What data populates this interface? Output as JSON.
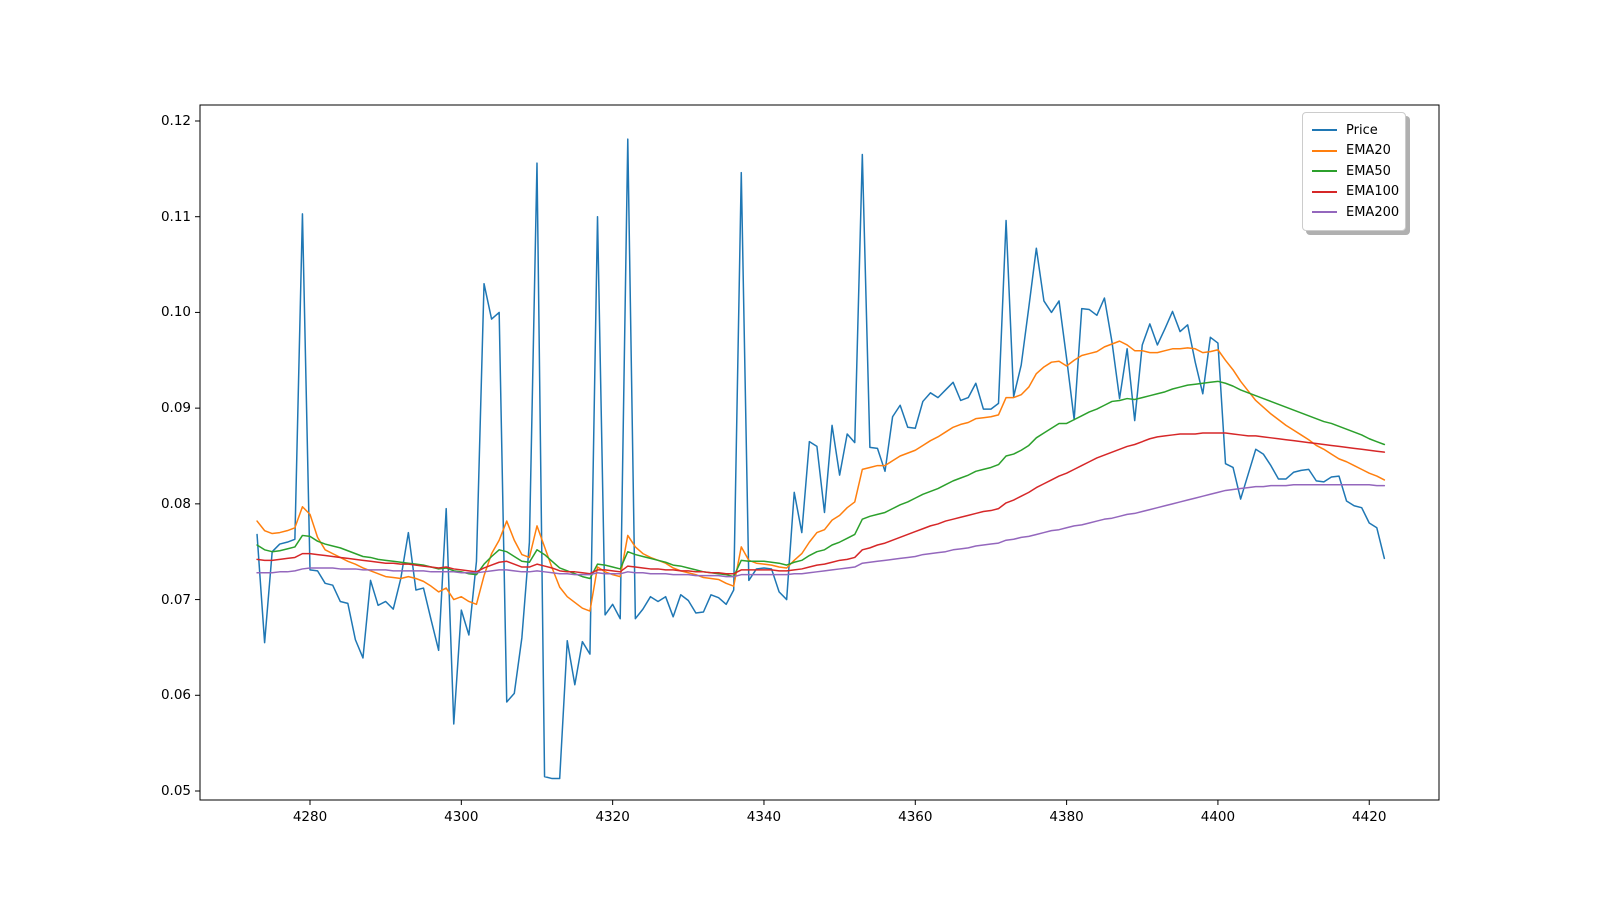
{
  "chart_data": {
    "type": "line",
    "title": "",
    "xlabel": "",
    "ylabel": "",
    "grid": false,
    "legend_position": "upper right",
    "xlim": [
      4265.46,
      4429.22
    ],
    "ylim": [
      0.04906,
      0.12167
    ],
    "x_ticks": {
      "values": [
        4280,
        4300,
        4320,
        4340,
        4360,
        4380,
        4400,
        4420
      ],
      "labels": [
        "4280",
        "4300",
        "4320",
        "4340",
        "4360",
        "4380",
        "4400",
        "4420"
      ]
    },
    "y_ticks": {
      "values": [
        0.05,
        0.06,
        0.07,
        0.08,
        0.09,
        0.1,
        0.11,
        0.12
      ],
      "labels": [
        "0.05",
        "0.06",
        "0.07",
        "0.08",
        "0.09",
        "0.10",
        "0.11",
        "0.12"
      ]
    },
    "x_start": 4273,
    "x_step": 1,
    "series": [
      {
        "name": "Price",
        "color": "#1f77b4",
        "width": 1.5,
        "values": [
          0.0768,
          0.0655,
          0.075,
          0.0758,
          0.076,
          0.0763,
          0.1103,
          0.0731,
          0.073,
          0.0717,
          0.0715,
          0.0698,
          0.0696,
          0.0658,
          0.0639,
          0.072,
          0.0694,
          0.0698,
          0.069,
          0.0722,
          0.077,
          0.071,
          0.0712,
          0.0679,
          0.0647,
          0.0795,
          0.057,
          0.0689,
          0.0663,
          0.074,
          0.103,
          0.0993,
          0.1,
          0.0593,
          0.0602,
          0.066,
          0.076,
          0.1156,
          0.0515,
          0.0513,
          0.0513,
          0.0657,
          0.0611,
          0.0656,
          0.0643,
          0.11,
          0.0684,
          0.0695,
          0.068,
          0.1181,
          0.068,
          0.069,
          0.0703,
          0.0698,
          0.0703,
          0.0682,
          0.0705,
          0.0699,
          0.0686,
          0.0687,
          0.0705,
          0.0702,
          0.0695,
          0.071,
          0.1146,
          0.072,
          0.0732,
          0.0733,
          0.0732,
          0.0708,
          0.07,
          0.0812,
          0.077,
          0.0865,
          0.086,
          0.0791,
          0.0882,
          0.083,
          0.0873,
          0.0864,
          0.1165,
          0.0859,
          0.0858,
          0.0834,
          0.0891,
          0.0903,
          0.088,
          0.0879,
          0.0907,
          0.0916,
          0.0911,
          0.0919,
          0.0927,
          0.0908,
          0.0911,
          0.0926,
          0.0899,
          0.0899,
          0.0905,
          0.1096,
          0.0912,
          0.0945,
          0.1005,
          0.1067,
          0.1012,
          0.1,
          0.1012,
          0.0952,
          0.0888,
          0.1004,
          0.1003,
          0.0997,
          0.1015,
          0.0969,
          0.091,
          0.0962,
          0.0887,
          0.0966,
          0.0988,
          0.0966,
          0.0983,
          0.1001,
          0.098,
          0.0987,
          0.0948,
          0.0915,
          0.0974,
          0.0968,
          0.0842,
          0.0838,
          0.0805,
          0.0831,
          0.0857,
          0.0852,
          0.084,
          0.0826,
          0.0826,
          0.0833,
          0.0835,
          0.0836,
          0.0824,
          0.0823,
          0.0828,
          0.0829,
          0.0803,
          0.0798,
          0.0796,
          0.078,
          0.0775,
          0.0743
        ]
      },
      {
        "name": "EMA20",
        "color": "#ff7f0e",
        "width": 1.5,
        "values": [
          0.0782,
          0.0772,
          0.0769,
          0.077,
          0.0772,
          0.0775,
          0.0797,
          0.0789,
          0.0765,
          0.0752,
          0.0748,
          0.0744,
          0.074,
          0.0737,
          0.0733,
          0.073,
          0.0727,
          0.0724,
          0.0723,
          0.0722,
          0.0724,
          0.0722,
          0.0719,
          0.0714,
          0.0708,
          0.0712,
          0.07,
          0.0703,
          0.0698,
          0.0695,
          0.0725,
          0.0748,
          0.0762,
          0.0782,
          0.0762,
          0.0747,
          0.0744,
          0.0777,
          0.0755,
          0.0733,
          0.0713,
          0.0703,
          0.0697,
          0.0691,
          0.0688,
          0.0734,
          0.0729,
          0.0726,
          0.0724,
          0.0767,
          0.0755,
          0.0748,
          0.0744,
          0.0741,
          0.0738,
          0.0733,
          0.073,
          0.0728,
          0.0726,
          0.0723,
          0.0722,
          0.0721,
          0.0717,
          0.0714,
          0.0755,
          0.0741,
          0.0738,
          0.0737,
          0.0736,
          0.0734,
          0.0733,
          0.0741,
          0.0748,
          0.076,
          0.077,
          0.0773,
          0.0783,
          0.0788,
          0.0796,
          0.0802,
          0.0836,
          0.0838,
          0.084,
          0.084,
          0.0845,
          0.085,
          0.0853,
          0.0856,
          0.0861,
          0.0866,
          0.087,
          0.0875,
          0.088,
          0.0883,
          0.0885,
          0.0889,
          0.089,
          0.0891,
          0.0893,
          0.0911,
          0.0911,
          0.0914,
          0.0922,
          0.0936,
          0.0943,
          0.0948,
          0.0949,
          0.0944,
          0.095,
          0.0955,
          0.0957,
          0.0959,
          0.0964,
          0.0967,
          0.097,
          0.0966,
          0.096,
          0.096,
          0.0958,
          0.0958,
          0.096,
          0.0962,
          0.0962,
          0.0963,
          0.0962,
          0.0958,
          0.0959,
          0.0961,
          0.095,
          0.094,
          0.0928,
          0.0918,
          0.0908,
          0.0901,
          0.0894,
          0.0888,
          0.0882,
          0.0877,
          0.0872,
          0.0867,
          0.0861,
          0.0857,
          0.0852,
          0.0847,
          0.0844,
          0.084,
          0.0836,
          0.0832,
          0.0829,
          0.0825
        ]
      },
      {
        "name": "EMA50",
        "color": "#2ca02c",
        "width": 1.5,
        "values": [
          0.0757,
          0.0752,
          0.075,
          0.0751,
          0.0753,
          0.0755,
          0.0767,
          0.0766,
          0.0761,
          0.0758,
          0.0756,
          0.0754,
          0.0751,
          0.0748,
          0.0745,
          0.0744,
          0.0742,
          0.0741,
          0.074,
          0.0739,
          0.0738,
          0.0737,
          0.0736,
          0.0734,
          0.0732,
          0.0733,
          0.073,
          0.0729,
          0.0727,
          0.0726,
          0.0737,
          0.0745,
          0.0752,
          0.075,
          0.0745,
          0.074,
          0.0739,
          0.0752,
          0.0747,
          0.074,
          0.0733,
          0.073,
          0.0727,
          0.0724,
          0.0722,
          0.0737,
          0.0736,
          0.0734,
          0.0732,
          0.075,
          0.0747,
          0.0745,
          0.0743,
          0.0741,
          0.0739,
          0.0736,
          0.0735,
          0.0733,
          0.0731,
          0.0729,
          0.0728,
          0.0727,
          0.0726,
          0.0724,
          0.0741,
          0.074,
          0.074,
          0.074,
          0.0739,
          0.0738,
          0.0736,
          0.0739,
          0.0741,
          0.0746,
          0.075,
          0.0752,
          0.0757,
          0.076,
          0.0764,
          0.0768,
          0.0784,
          0.0787,
          0.0789,
          0.0791,
          0.0795,
          0.0799,
          0.0802,
          0.0806,
          0.081,
          0.0813,
          0.0816,
          0.082,
          0.0824,
          0.0827,
          0.083,
          0.0834,
          0.0836,
          0.0838,
          0.0841,
          0.085,
          0.0852,
          0.0856,
          0.0861,
          0.0869,
          0.0874,
          0.0879,
          0.0884,
          0.0884,
          0.0888,
          0.0892,
          0.0896,
          0.0899,
          0.0903,
          0.0907,
          0.0908,
          0.091,
          0.0909,
          0.0911,
          0.0913,
          0.0915,
          0.0917,
          0.092,
          0.0922,
          0.0924,
          0.0925,
          0.0926,
          0.0927,
          0.0928,
          0.0926,
          0.0923,
          0.0919,
          0.0916,
          0.0913,
          0.091,
          0.0907,
          0.0904,
          0.0901,
          0.0898,
          0.0895,
          0.0892,
          0.0889,
          0.0886,
          0.0884,
          0.0881,
          0.0878,
          0.0875,
          0.0872,
          0.0868,
          0.0865,
          0.0862
        ]
      },
      {
        "name": "EMA100",
        "color": "#d62728",
        "width": 1.5,
        "values": [
          0.0742,
          0.0741,
          0.0741,
          0.0742,
          0.0743,
          0.0744,
          0.0748,
          0.0748,
          0.0747,
          0.0746,
          0.0745,
          0.0744,
          0.0743,
          0.0742,
          0.0741,
          0.074,
          0.0739,
          0.0738,
          0.0738,
          0.0737,
          0.0737,
          0.0736,
          0.0735,
          0.0734,
          0.0733,
          0.0734,
          0.0732,
          0.0731,
          0.073,
          0.0729,
          0.0733,
          0.0736,
          0.0739,
          0.074,
          0.0737,
          0.0734,
          0.0734,
          0.0737,
          0.0735,
          0.0733,
          0.073,
          0.0729,
          0.0729,
          0.0728,
          0.0727,
          0.0731,
          0.0731,
          0.073,
          0.0729,
          0.0735,
          0.0734,
          0.0733,
          0.0732,
          0.0732,
          0.0731,
          0.0731,
          0.073,
          0.073,
          0.0729,
          0.0729,
          0.0728,
          0.0728,
          0.0727,
          0.0727,
          0.0731,
          0.0731,
          0.0731,
          0.0731,
          0.0731,
          0.073,
          0.073,
          0.0731,
          0.0732,
          0.0734,
          0.0736,
          0.0737,
          0.0739,
          0.0741,
          0.0742,
          0.0744,
          0.0752,
          0.0754,
          0.0757,
          0.0759,
          0.0762,
          0.0765,
          0.0768,
          0.0771,
          0.0774,
          0.0777,
          0.0779,
          0.0782,
          0.0784,
          0.0786,
          0.0788,
          0.079,
          0.0792,
          0.0793,
          0.0795,
          0.0801,
          0.0804,
          0.0808,
          0.0812,
          0.0817,
          0.0821,
          0.0825,
          0.0829,
          0.0832,
          0.0836,
          0.084,
          0.0844,
          0.0848,
          0.0851,
          0.0854,
          0.0857,
          0.086,
          0.0862,
          0.0865,
          0.0868,
          0.087,
          0.0871,
          0.0872,
          0.0873,
          0.0873,
          0.0873,
          0.0874,
          0.0874,
          0.0874,
          0.0874,
          0.0873,
          0.0872,
          0.0871,
          0.0871,
          0.087,
          0.0869,
          0.0868,
          0.0867,
          0.0866,
          0.0865,
          0.0864,
          0.0863,
          0.0862,
          0.0861,
          0.086,
          0.0859,
          0.0858,
          0.0857,
          0.0856,
          0.0855,
          0.0854
        ]
      },
      {
        "name": "EMA200",
        "color": "#9467bd",
        "width": 1.5,
        "values": [
          0.0728,
          0.0728,
          0.0728,
          0.0729,
          0.0729,
          0.073,
          0.0732,
          0.0733,
          0.0733,
          0.0733,
          0.0733,
          0.0732,
          0.0732,
          0.0732,
          0.0731,
          0.0731,
          0.0731,
          0.0731,
          0.073,
          0.073,
          0.073,
          0.073,
          0.073,
          0.0729,
          0.0729,
          0.0729,
          0.0729,
          0.0728,
          0.0728,
          0.0728,
          0.0729,
          0.073,
          0.0731,
          0.0731,
          0.073,
          0.0729,
          0.0729,
          0.073,
          0.0729,
          0.0728,
          0.0727,
          0.0727,
          0.0726,
          0.0726,
          0.0726,
          0.0728,
          0.0727,
          0.0727,
          0.0727,
          0.0729,
          0.0728,
          0.0728,
          0.0727,
          0.0727,
          0.0727,
          0.0726,
          0.0726,
          0.0726,
          0.0725,
          0.0725,
          0.0725,
          0.0725,
          0.0724,
          0.0724,
          0.0726,
          0.0726,
          0.0726,
          0.0726,
          0.0726,
          0.0726,
          0.0726,
          0.0727,
          0.0727,
          0.0728,
          0.0729,
          0.073,
          0.0731,
          0.0732,
          0.0733,
          0.0734,
          0.0738,
          0.0739,
          0.074,
          0.0741,
          0.0742,
          0.0743,
          0.0744,
          0.0745,
          0.0747,
          0.0748,
          0.0749,
          0.075,
          0.0752,
          0.0753,
          0.0754,
          0.0756,
          0.0757,
          0.0758,
          0.0759,
          0.0762,
          0.0763,
          0.0765,
          0.0766,
          0.0768,
          0.077,
          0.0772,
          0.0773,
          0.0775,
          0.0777,
          0.0778,
          0.078,
          0.0782,
          0.0784,
          0.0785,
          0.0787,
          0.0789,
          0.079,
          0.0792,
          0.0794,
          0.0796,
          0.0798,
          0.08,
          0.0802,
          0.0804,
          0.0806,
          0.0808,
          0.081,
          0.0812,
          0.0814,
          0.0815,
          0.0816,
          0.0817,
          0.0818,
          0.0818,
          0.0819,
          0.0819,
          0.0819,
          0.082,
          0.082,
          0.082,
          0.082,
          0.082,
          0.082,
          0.082,
          0.082,
          0.082,
          0.082,
          0.082,
          0.0819,
          0.0819
        ]
      }
    ]
  }
}
